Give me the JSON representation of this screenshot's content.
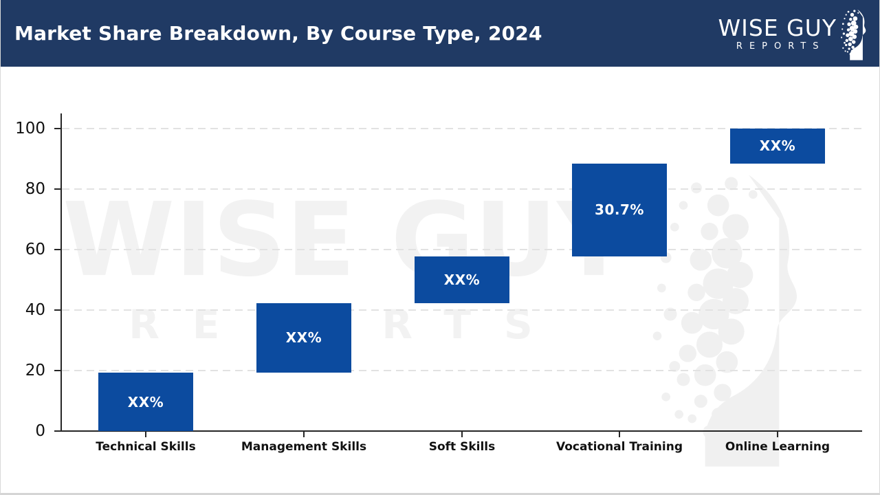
{
  "header": {
    "title": "Market Share Breakdown, By Course Type, 2024",
    "logo": {
      "line1": "WISE GUY",
      "line2": "REPORTS"
    }
  },
  "watermark": {
    "line1": "WISE GUY",
    "line2": "REPORTS"
  },
  "colors": {
    "header_bg": "#203A64",
    "bar": "#0C4B9F",
    "axis": "#262626",
    "grid": "#e2e2e2",
    "watermark": "#f2f2f2",
    "bar_label": "#ffffff"
  },
  "chart_data": {
    "type": "bar",
    "subtype": "waterfall",
    "title": "Market Share Breakdown, By Course Type, 2024",
    "xlabel": "",
    "ylabel": "",
    "ylim": [
      0,
      100
    ],
    "yticks": [
      0,
      20,
      40,
      60,
      80,
      100
    ],
    "grid": "horizontal-dashed",
    "legend": "none",
    "categories": [
      "Technical Skills",
      "Management Skills",
      "Soft Skills",
      "Vocational Training",
      "Online Learning"
    ],
    "series": [
      {
        "name": "Market Share",
        "segments": [
          {
            "category": "Technical Skills",
            "start": 0,
            "end": 19.3,
            "label": "XX%"
          },
          {
            "category": "Management Skills",
            "start": 19.3,
            "end": 42.3,
            "label": "XX%"
          },
          {
            "category": "Soft Skills",
            "start": 42.3,
            "end": 57.8,
            "label": "XX%"
          },
          {
            "category": "Vocational Training",
            "start": 57.8,
            "end": 88.5,
            "label": "30.7%"
          },
          {
            "category": "Online Learning",
            "start": 88.5,
            "end": 100,
            "label": "XX%"
          }
        ]
      }
    ]
  }
}
